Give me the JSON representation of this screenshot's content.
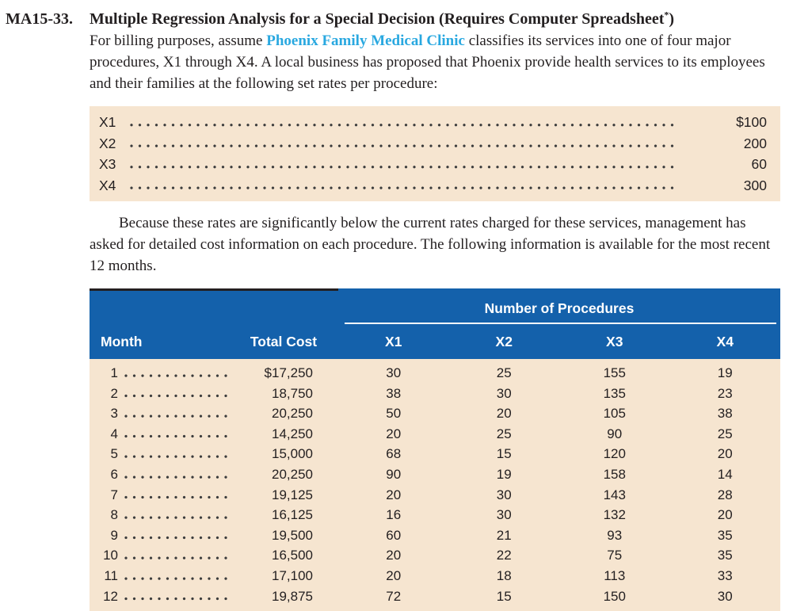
{
  "problem": {
    "number": "MA15-33.",
    "title": "Multiple Regression Analysis for a Special Decision (Requires Computer Spreadsheet",
    "title_superscript": "*",
    "title_close": ")"
  },
  "intro": {
    "before_link": "For billing purposes, assume ",
    "clinic_name": "Phoenix Family Medical Clinic",
    "after_link": " classifies its services into one of four major procedures, X1 through X4. A local business has proposed that Phoenix provide health services to its employees and their families at the following set rates per procedure:"
  },
  "rates": {
    "items": [
      {
        "label": "X1",
        "amount": "$100"
      },
      {
        "label": "X2",
        "amount": "200"
      },
      {
        "label": "X3",
        "amount": "60"
      },
      {
        "label": "X4",
        "amount": "300"
      }
    ]
  },
  "paragraph2": "Because these rates are significantly below the current rates charged for these services, management has asked for detailed cost information on each procedure. The following information is available for the most recent 12 months.",
  "table": {
    "span_header": "Number of Procedures",
    "columns": {
      "month": "Month",
      "total_cost": "Total Cost",
      "x": [
        "X1",
        "X2",
        "X3",
        "X4"
      ]
    },
    "rows": [
      {
        "month": "1",
        "total_cost": "$17,250",
        "x1": "30",
        "x2": "25",
        "x3": "155",
        "x4": "19"
      },
      {
        "month": "2",
        "total_cost": "18,750",
        "x1": "38",
        "x2": "30",
        "x3": "135",
        "x4": "23"
      },
      {
        "month": "3",
        "total_cost": "20,250",
        "x1": "50",
        "x2": "20",
        "x3": "105",
        "x4": "38"
      },
      {
        "month": "4",
        "total_cost": "14,250",
        "x1": "20",
        "x2": "25",
        "x3": "90",
        "x4": "25"
      },
      {
        "month": "5",
        "total_cost": "15,000",
        "x1": "68",
        "x2": "15",
        "x3": "120",
        "x4": "20"
      },
      {
        "month": "6",
        "total_cost": "20,250",
        "x1": "90",
        "x2": "19",
        "x3": "158",
        "x4": "14"
      },
      {
        "month": "7",
        "total_cost": "19,125",
        "x1": "20",
        "x2": "30",
        "x3": "143",
        "x4": "28"
      },
      {
        "month": "8",
        "total_cost": "16,125",
        "x1": "16",
        "x2": "30",
        "x3": "132",
        "x4": "20"
      },
      {
        "month": "9",
        "total_cost": "19,500",
        "x1": "60",
        "x2": "21",
        "x3": "93",
        "x4": "35"
      },
      {
        "month": "10",
        "total_cost": "16,500",
        "x1": "20",
        "x2": "22",
        "x3": "75",
        "x4": "35"
      },
      {
        "month": "11",
        "total_cost": "17,100",
        "x1": "20",
        "x2": "18",
        "x3": "113",
        "x4": "33"
      },
      {
        "month": "12",
        "total_cost": "19,875",
        "x1": "72",
        "x2": "15",
        "x3": "150",
        "x4": "30"
      }
    ]
  },
  "colors": {
    "header_blue": "#1461ab",
    "panel_tan": "#f6e5d0",
    "link_cyan": "#29a8e0",
    "text_black": "#231f20"
  }
}
